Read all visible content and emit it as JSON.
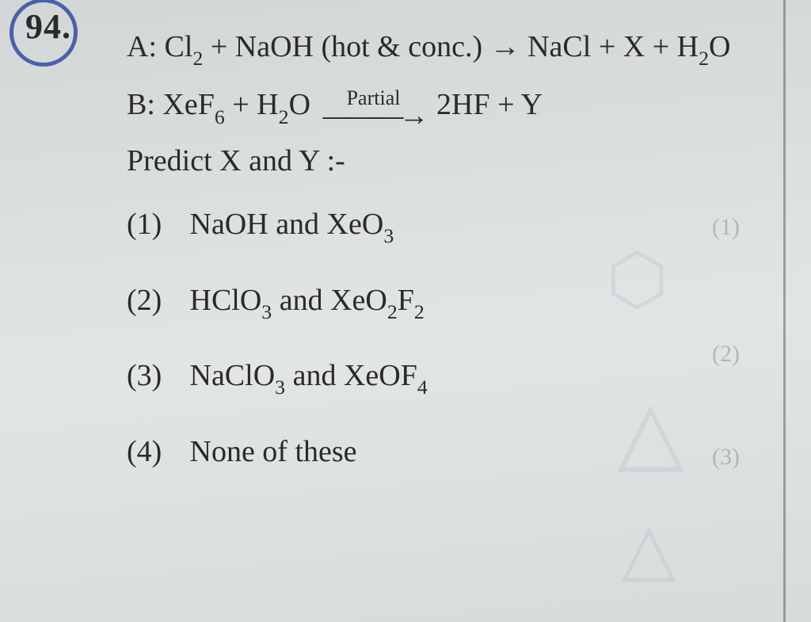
{
  "question": {
    "number": "94.",
    "lineA_prefix": "A:",
    "lineA_lhs_cl2": "Cl",
    "lineA_lhs_cl2_sub": "2",
    "lineA_lhs_plus1": " + NaOH (hot & conc.) → NaCl + X + H",
    "lineA_h2o_sub1": "2",
    "lineA_h2o_O": "O",
    "lineB_prefix": "B:",
    "lineB_xef6_Xe": " XeF",
    "lineB_xef6_sub": "6",
    "lineB_plus": " + H",
    "lineB_h2o_sub": "2",
    "lineB_h2o_O": "O",
    "arrow_label": "Partial",
    "arrow_glyph": "———→",
    "lineB_rhs_2hf": " 2HF + Y",
    "predict": "Predict X and Y :-"
  },
  "options": {
    "o1_num": "(1)",
    "o1_text_a": "NaOH and XeO",
    "o1_sub": "3",
    "o2_num": "(2)",
    "o2_text_a": "HClO",
    "o2_sub_a": "3",
    "o2_text_b": " and XeO",
    "o2_sub_b": "2",
    "o2_text_c": "F",
    "o2_sub_c": "2",
    "o3_num": "(3)",
    "o3_text_a": "NaClO",
    "o3_sub_a": "3",
    "o3_text_b": " and XeOF",
    "o3_sub_b": "4",
    "o4_num": "(4)",
    "o4_text": "None of these"
  },
  "ghost_markers": {
    "m1": "(1)",
    "m2": "(2)",
    "m3": "(3)"
  }
}
